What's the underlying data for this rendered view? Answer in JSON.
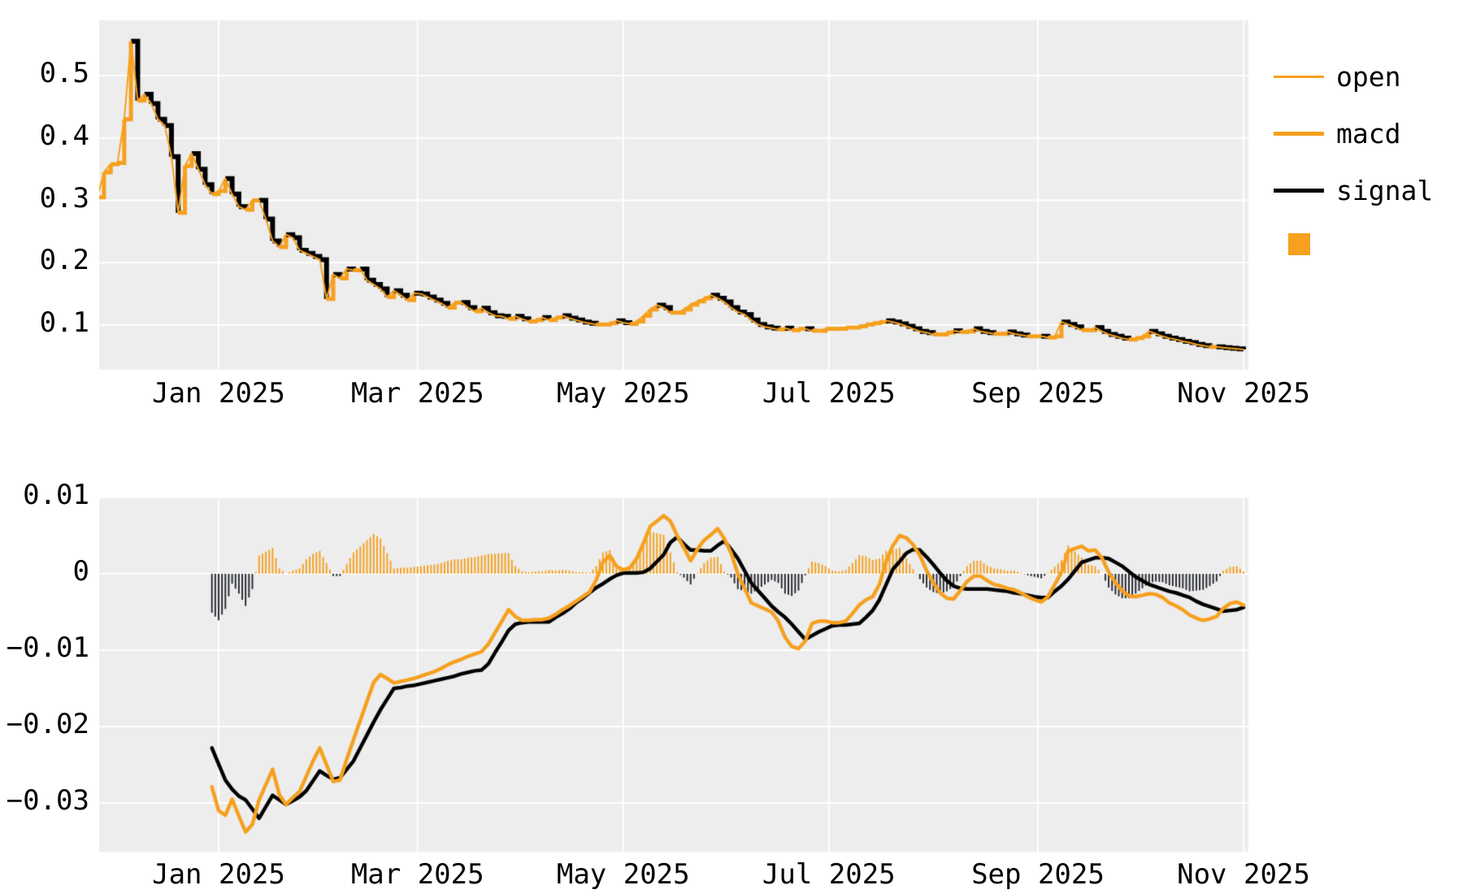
{
  "figure": {
    "background": "#ffffff",
    "plot_background": "#ededed",
    "grid_color": "#ffffff",
    "text_color": "#000000",
    "accent_orange": "#f6a01e",
    "line_black": "#000000",
    "histogram_negative": "#24272e"
  },
  "legend": {
    "items": [
      {
        "label": "open",
        "swatch": "thin-orange-line",
        "color": "#f6a01e",
        "thickness": 2.5
      },
      {
        "label": "macd",
        "swatch": "thick-orange-line",
        "color": "#f6a01e",
        "thickness": 5
      },
      {
        "label": "signal",
        "swatch": "thick-black-line",
        "color": "#000000",
        "thickness": 5
      },
      {
        "label": "",
        "swatch": "orange-square",
        "color": "#f6a01e",
        "thickness": 0
      }
    ]
  },
  "chart_data": [
    {
      "type": "line",
      "panel": "price",
      "title": "",
      "xlabel": "",
      "ylabel": "",
      "grid": true,
      "y_ticks": [
        {
          "label": "0.5",
          "value": 0.5
        },
        {
          "label": "0.4",
          "value": 0.4
        },
        {
          "label": "0.3",
          "value": 0.3
        },
        {
          "label": "0.2",
          "value": 0.2
        },
        {
          "label": "0.1",
          "value": 0.1
        }
      ],
      "x_ticks": [
        {
          "label": "Jan 2025",
          "day": 36
        },
        {
          "label": "Mar 2025",
          "day": 95
        },
        {
          "label": "May 2025",
          "day": 156
        },
        {
          "label": "Jul 2025",
          "day": 217
        },
        {
          "label": "Sep 2025",
          "day": 279
        },
        {
          "label": "Nov 2025",
          "day": 340
        }
      ],
      "ylim": [
        0.028,
        0.589
      ],
      "xlim_days": [
        0,
        341
      ],
      "series": [
        {
          "name": "open",
          "color": "#f6a01e",
          "down_step_color": "#000000",
          "style": "daily-steps-with-thin-line",
          "t_start": 0,
          "t_step": 2,
          "unit": 1,
          "values": [
            0.305,
            0.345,
            0.358,
            0.36,
            0.43,
            0.555,
            0.46,
            0.47,
            0.455,
            0.43,
            0.42,
            0.37,
            0.28,
            0.355,
            0.375,
            0.35,
            0.325,
            0.31,
            0.315,
            0.335,
            0.31,
            0.29,
            0.285,
            0.3,
            0.3,
            0.27,
            0.235,
            0.225,
            0.245,
            0.24,
            0.22,
            0.215,
            0.21,
            0.205,
            0.142,
            0.181,
            0.175,
            0.19,
            0.188,
            0.19,
            0.172,
            0.165,
            0.158,
            0.145,
            0.155,
            0.148,
            0.14,
            0.151,
            0.15,
            0.145,
            0.14,
            0.135,
            0.128,
            0.136,
            0.136,
            0.128,
            0.122,
            0.127,
            0.12,
            0.115,
            0.114,
            0.11,
            0.114,
            0.11,
            0.106,
            0.108,
            0.112,
            0.108,
            0.112,
            0.115,
            0.111,
            0.108,
            0.105,
            0.103,
            0.101,
            0.101,
            0.103,
            0.107,
            0.104,
            0.102,
            0.106,
            0.115,
            0.125,
            0.132,
            0.128,
            0.12,
            0.12,
            0.125,
            0.133,
            0.138,
            0.143,
            0.148,
            0.143,
            0.137,
            0.128,
            0.121,
            0.117,
            0.108,
            0.101,
            0.097,
            0.095,
            0.093,
            0.095,
            0.092,
            0.094,
            0.094,
            0.091,
            0.091,
            0.094,
            0.094,
            0.094,
            0.096,
            0.096,
            0.098,
            0.101,
            0.103,
            0.105,
            0.107,
            0.105,
            0.102,
            0.098,
            0.094,
            0.09,
            0.088,
            0.085,
            0.085,
            0.088,
            0.091,
            0.089,
            0.09,
            0.094,
            0.09,
            0.088,
            0.086,
            0.086,
            0.089,
            0.086,
            0.084,
            0.082,
            0.082,
            0.082,
            0.08,
            0.082,
            0.105,
            0.101,
            0.097,
            0.092,
            0.092,
            0.096,
            0.09,
            0.085,
            0.082,
            0.079,
            0.077,
            0.079,
            0.082,
            0.09,
            0.086,
            0.082,
            0.079,
            0.077,
            0.074,
            0.072,
            0.069,
            0.067,
            0.065,
            0.065,
            0.064,
            0.063,
            0.062,
            0.061
          ]
        }
      ]
    },
    {
      "type": "line+histogram",
      "panel": "macd",
      "title": "",
      "xlabel": "",
      "ylabel": "",
      "grid": true,
      "y_ticks": [
        {
          "label": "0.01",
          "value": 0.01
        },
        {
          "label": "0",
          "value": 0
        },
        {
          "label": "−0.01",
          "value": -0.01
        },
        {
          "label": "−0.02",
          "value": -0.02
        },
        {
          "label": "−0.03",
          "value": -0.03
        }
      ],
      "x_ticks": [
        {
          "label": "Jan 2025",
          "day": 36
        },
        {
          "label": "Mar 2025",
          "day": 95
        },
        {
          "label": "May 2025",
          "day": 156
        },
        {
          "label": "Jul 2025",
          "day": 217
        },
        {
          "label": "Sep 2025",
          "day": 279
        },
        {
          "label": "Nov 2025",
          "day": 340
        }
      ],
      "ylim": [
        -0.0364,
        0.01
      ],
      "xlim_days": [
        0,
        341
      ],
      "series": [
        {
          "name": "macd",
          "color": "#f6a01e",
          "width": 4.5,
          "t_start": 34,
          "t_step": 2,
          "unit": 0.0001,
          "values": [
            -279,
            -310,
            -316,
            -295,
            -317,
            -338,
            -328,
            -296,
            -276,
            -256,
            -289,
            -302,
            -293,
            -285,
            -265,
            -245,
            -228,
            -250,
            -272,
            -270,
            -243,
            -217,
            -192,
            -167,
            -142,
            -132,
            -137,
            -143,
            -141,
            -139,
            -137,
            -134,
            -131,
            -128,
            -124,
            -119,
            -115,
            -112,
            -108,
            -105,
            -102,
            -92,
            -77,
            -62,
            -47,
            -56,
            -61,
            -61,
            -60,
            -60,
            -58,
            -53,
            -47,
            -42,
            -36,
            -30,
            -24,
            -8,
            15,
            24,
            10,
            5,
            8,
            20,
            40,
            62,
            69,
            76,
            69,
            50,
            34,
            17,
            32,
            44,
            51,
            59,
            46,
            27,
            0,
            -19,
            -38,
            -42,
            -46,
            -50,
            -62,
            -83,
            -95,
            -98,
            -88,
            -65,
            -62,
            -62,
            -64,
            -64,
            -62,
            -52,
            -41,
            -34,
            -30,
            -14,
            16,
            37,
            50,
            47,
            38,
            24,
            4,
            -12,
            -25,
            -32,
            -33,
            -22,
            -10,
            -3,
            -3,
            -9,
            -14,
            -16,
            -19,
            -21,
            -25,
            -30,
            -34,
            -37,
            -30,
            -14,
            2,
            30,
            33,
            36,
            30,
            31,
            21,
            2,
            -12,
            -22,
            -29,
            -30,
            -28,
            -26,
            -27,
            -31,
            -38,
            -42,
            -47,
            -54,
            -58,
            -61,
            -59,
            -56,
            -45,
            -39,
            -37,
            -41
          ]
        },
        {
          "name": "signal",
          "color": "#000000",
          "width": 4.5,
          "t_start": 34,
          "t_step": 2,
          "unit": 0.0001,
          "values": [
            -228,
            -249,
            -270,
            -282,
            -291,
            -296,
            -308,
            -320,
            -305,
            -290,
            -296,
            -302,
            -297,
            -292,
            -284,
            -271,
            -258,
            -264,
            -269,
            -267,
            -256,
            -245,
            -228,
            -211,
            -194,
            -178,
            -164,
            -150,
            -149,
            -147,
            -146,
            -144,
            -142,
            -140,
            -138,
            -136,
            -134,
            -131,
            -129,
            -127,
            -126,
            -118,
            -103,
            -89,
            -74,
            -66,
            -64,
            -63,
            -63,
            -63,
            -63,
            -57,
            -52,
            -46,
            -38,
            -32,
            -25,
            -18,
            -13,
            -7,
            -2,
            1,
            1,
            1,
            2,
            7,
            16,
            25,
            41,
            48,
            39,
            31,
            31,
            30,
            30,
            37,
            43,
            32,
            20,
            4,
            -12,
            -22,
            -32,
            -42,
            -50,
            -57,
            -66,
            -76,
            -86,
            -81,
            -76,
            -72,
            -68,
            -67,
            -67,
            -66,
            -65,
            -57,
            -48,
            -34,
            -14,
            6,
            16,
            27,
            32,
            31,
            22,
            12,
            1,
            -9,
            -16,
            -19,
            -20,
            -20,
            -20,
            -20,
            -21,
            -22,
            -23,
            -25,
            -26,
            -28,
            -30,
            -31,
            -31,
            -23,
            -16,
            -7,
            4,
            15,
            18,
            21,
            21,
            20,
            15,
            10,
            3,
            -4,
            -9,
            -14,
            -17,
            -20,
            -23,
            -25,
            -28,
            -31,
            -36,
            -40,
            -43,
            -46,
            -49,
            -48,
            -47,
            -44
          ]
        },
        {
          "name": "histogram",
          "derived": "macd-minus-signal",
          "pos_color": "#f6a01e",
          "neg_color": "#24272e"
        }
      ]
    }
  ]
}
